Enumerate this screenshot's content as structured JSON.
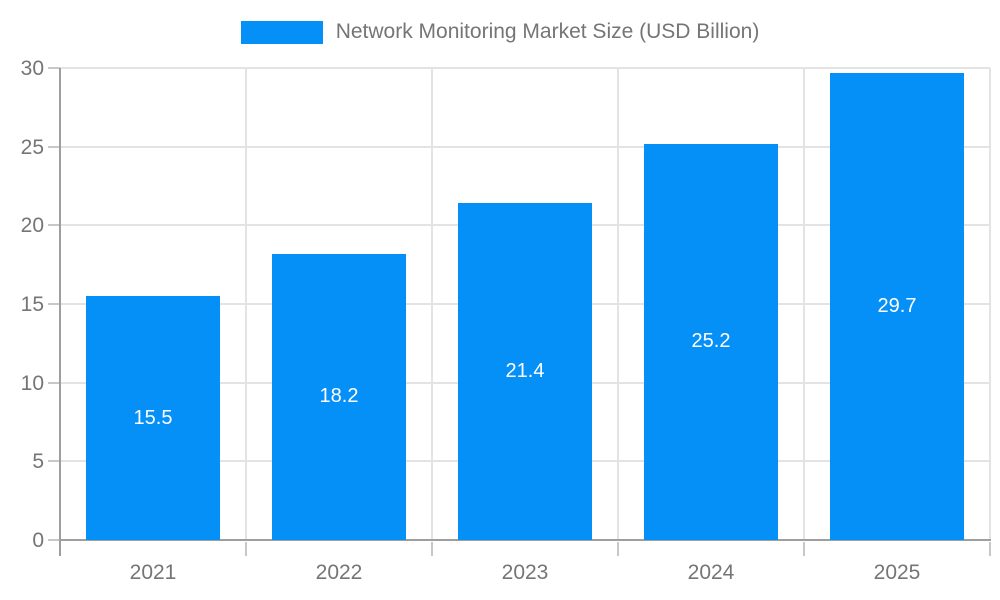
{
  "chart_data": {
    "type": "bar",
    "title": "Network Monitoring Market Size (USD Billion)",
    "categories": [
      "2021",
      "2022",
      "2023",
      "2024",
      "2025"
    ],
    "values": [
      15.5,
      18.2,
      21.4,
      25.2,
      29.7
    ],
    "value_labels": [
      "15.5",
      "18.2",
      "21.4",
      "25.2",
      "29.7"
    ],
    "xlabel": "",
    "ylabel": "",
    "ylim": [
      0,
      30
    ],
    "yticks": [
      0,
      5,
      10,
      15,
      20,
      25,
      30
    ],
    "ytick_labels": [
      "0",
      "5",
      "10",
      "15",
      "20",
      "25",
      "30"
    ],
    "grid": true,
    "legend_position": "top",
    "colors": {
      "bar": "#0590f8",
      "grid": "#e3e3e3",
      "axis": "#9e9e9e",
      "tick": "#c7c7c7",
      "text": "#757575",
      "value_label": "#ffffff",
      "background": "#ffffff"
    }
  }
}
